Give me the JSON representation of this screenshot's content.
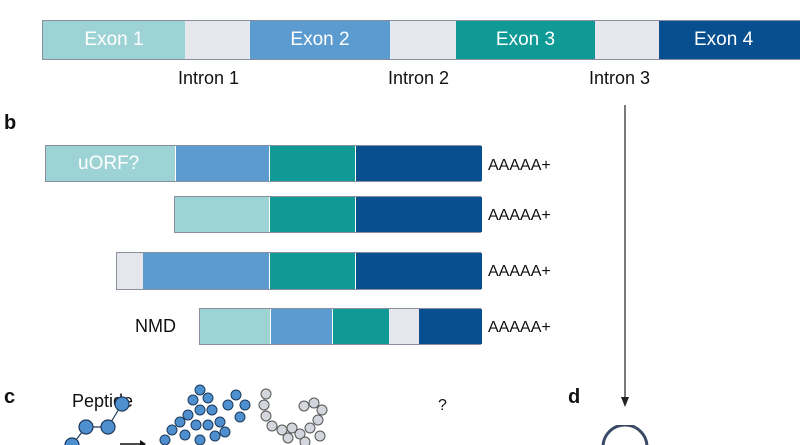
{
  "colors": {
    "exon1": "#9dd3d4",
    "exon2": "#5b9bd0",
    "exon3": "#0f9a95",
    "exon4": "#074f8e",
    "intron": "#e6e7ec"
  },
  "panel_a": {
    "exons": [
      "Exon 1",
      "Exon 2",
      "Exon 3",
      "Exon 4"
    ],
    "introns": [
      "Intron 1",
      "Intron 2",
      "Intron 3"
    ]
  },
  "panel_b": {
    "label": "b",
    "row1_label": "uORF?",
    "row4_label": "NMD",
    "polya": [
      "AAAAA+",
      "AAAAA+",
      "AAAAA+",
      "AAAAA+"
    ]
  },
  "panel_c": {
    "label": "c",
    "peptide": "Peptide",
    "question": "?"
  },
  "panel_d": {
    "label": "d"
  }
}
